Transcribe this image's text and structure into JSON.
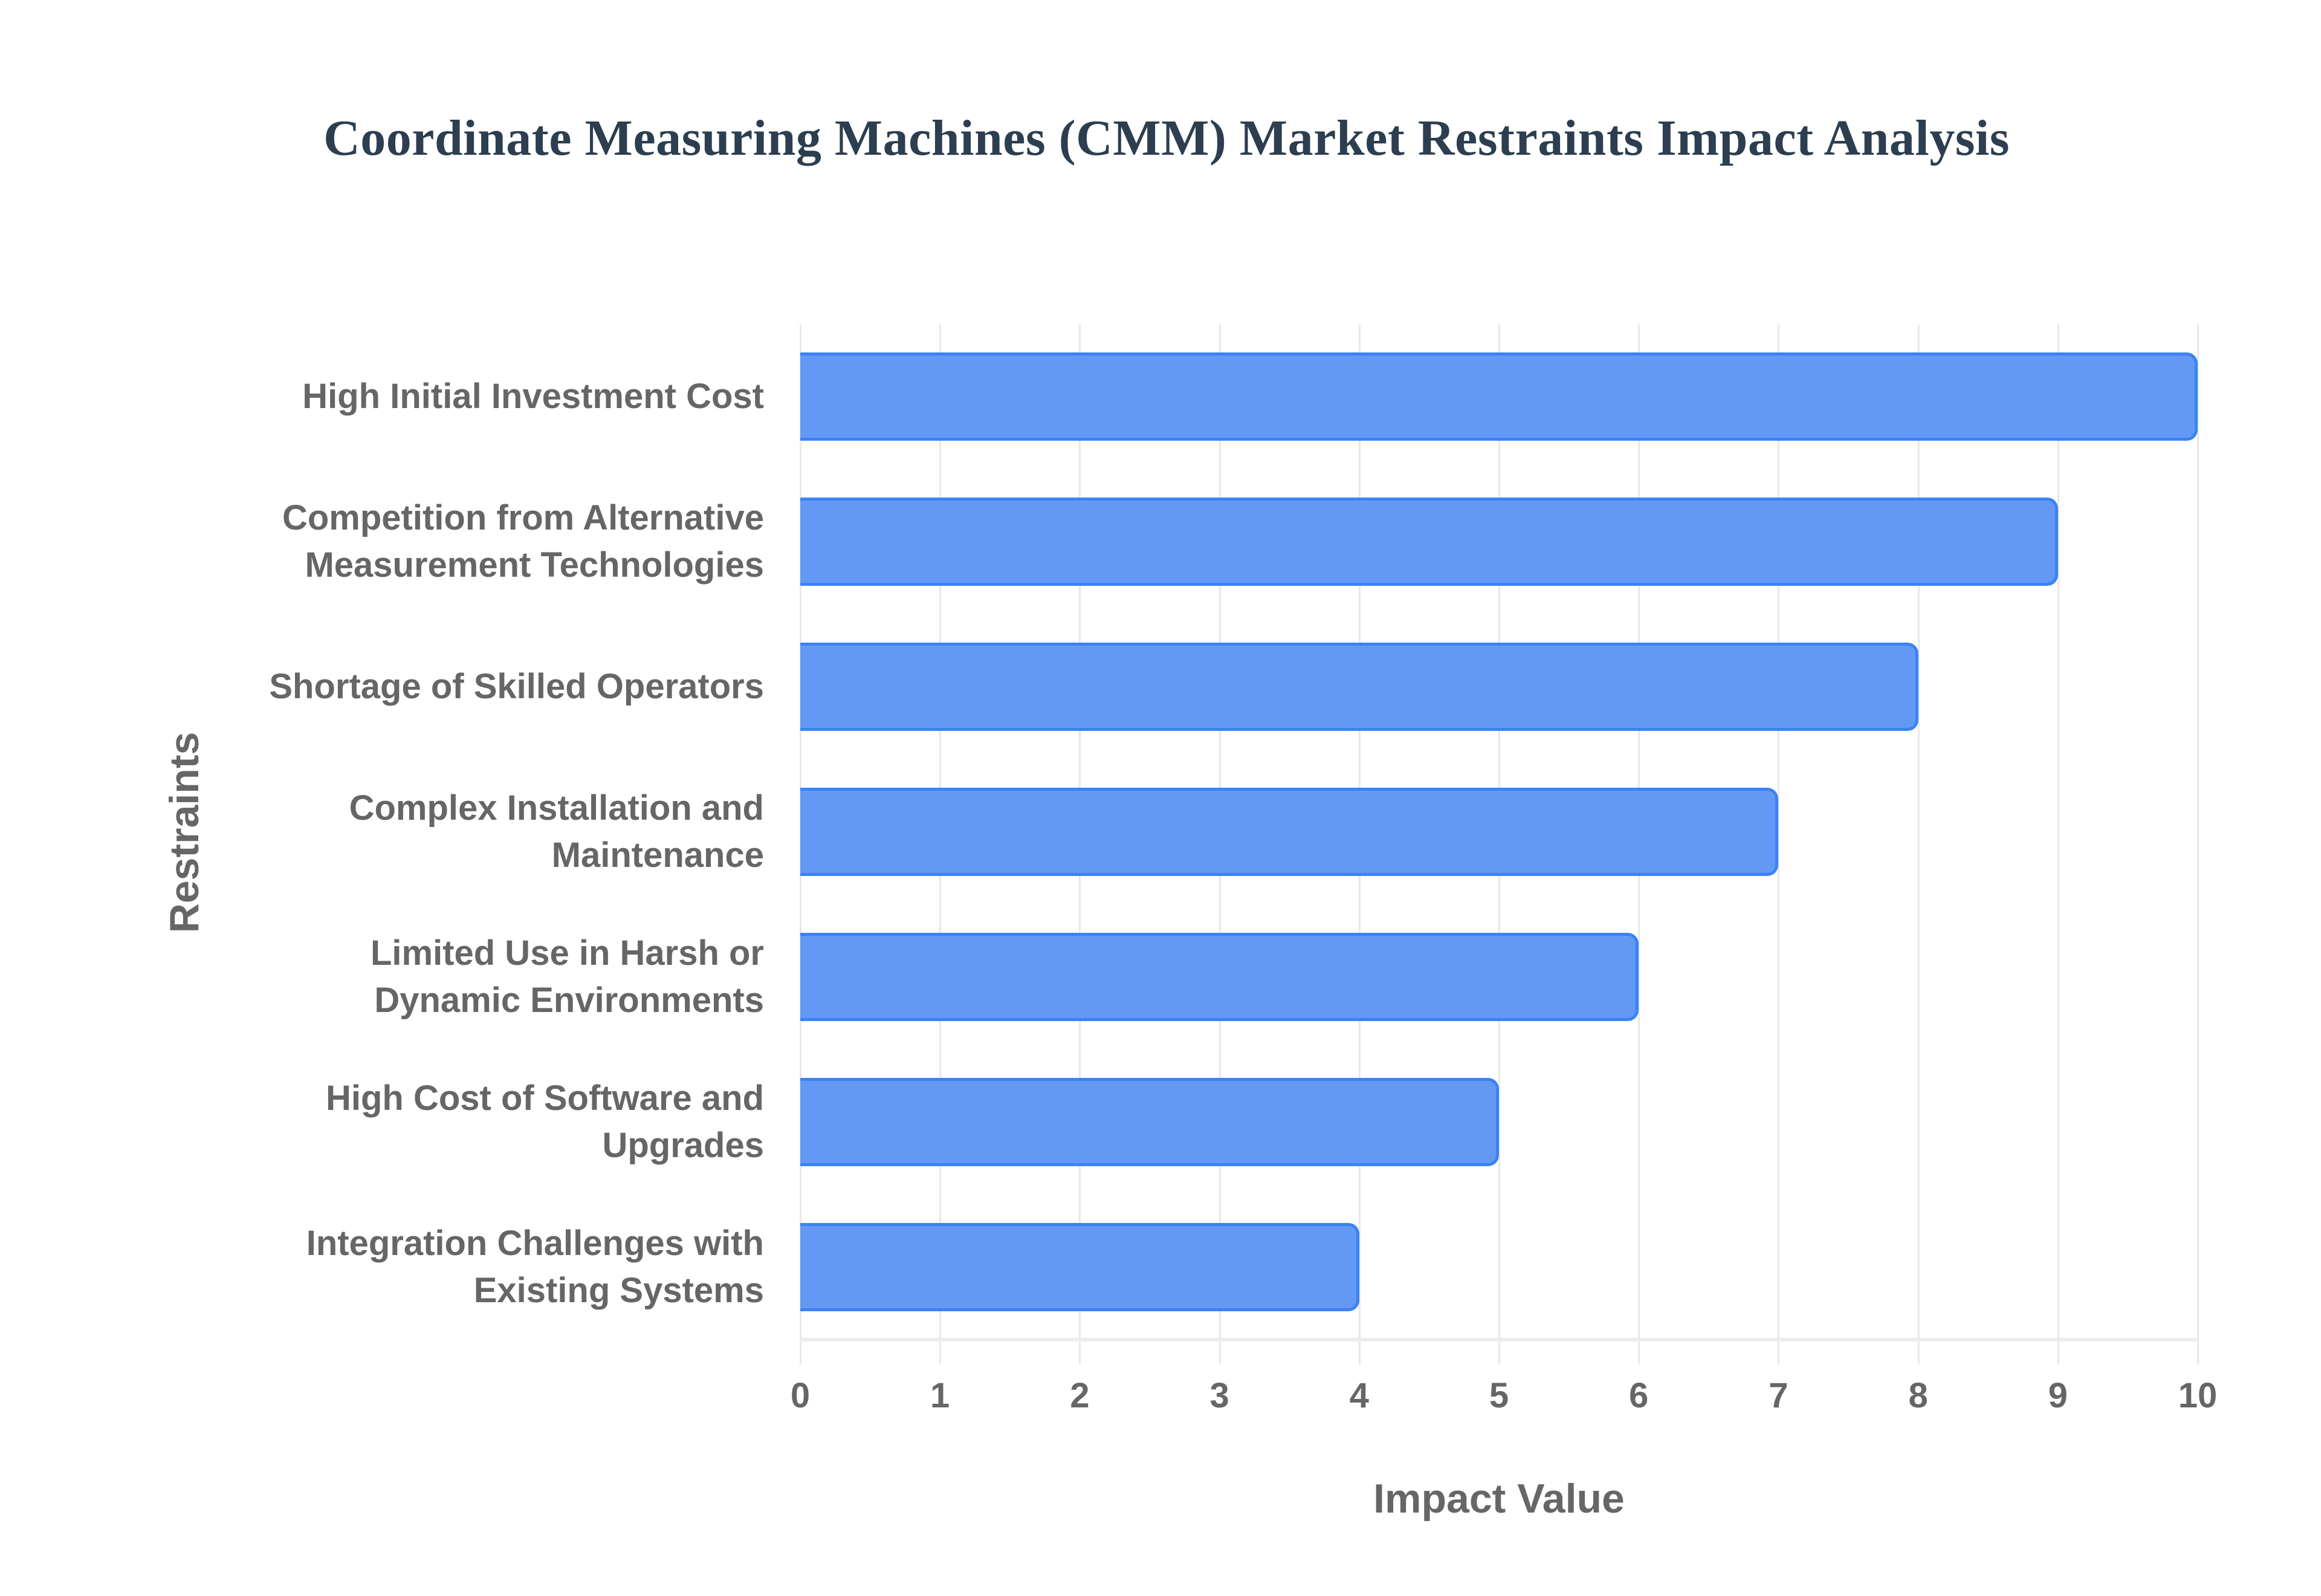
{
  "chart_data": {
    "type": "bar",
    "orientation": "horizontal",
    "title": "Coordinate Measuring Machines (CMM) Market Restraints Impact Analysis",
    "xlabel": "Impact Value",
    "ylabel": "Restraints",
    "categories": [
      "High Initial Investment Cost",
      "Competition from Alternative Measurement Technologies",
      "Shortage of Skilled Operators",
      "Complex Installation and Maintenance",
      "Limited Use in Harsh or Dynamic Environments",
      "High Cost of Software and Upgrades",
      "Integration Challenges with Existing Systems"
    ],
    "values": [
      10,
      9,
      8,
      7,
      6,
      5,
      4
    ],
    "xlim": [
      0,
      10
    ],
    "xticks": [
      "0",
      "1",
      "2",
      "3",
      "4",
      "5",
      "6",
      "7",
      "8",
      "9",
      "10"
    ],
    "grid": true,
    "legend": null,
    "bar_color": "#6399f5",
    "bar_border_color": "#3b82f6"
  },
  "labels": {
    "title": "Coordinate Measuring Machines (CMM) Market Restraints Impact Analysis",
    "xlabel": "Impact Value",
    "ylabel": "Restraints",
    "ylabels": [
      [
        "High Initial Investment Cost"
      ],
      [
        "Competition from Alternative",
        "Measurement Technologies"
      ],
      [
        "Shortage of Skilled Operators"
      ],
      [
        "Complex Installation and",
        "Maintenance"
      ],
      [
        "Limited Use in Harsh or",
        "Dynamic Environments"
      ],
      [
        "High Cost of Software and",
        "Upgrades"
      ],
      [
        "Integration Challenges with",
        "Existing Systems"
      ]
    ]
  },
  "colors": {
    "title": "#2c3e50",
    "text": "#666666",
    "grid": "#e8e8ec"
  }
}
